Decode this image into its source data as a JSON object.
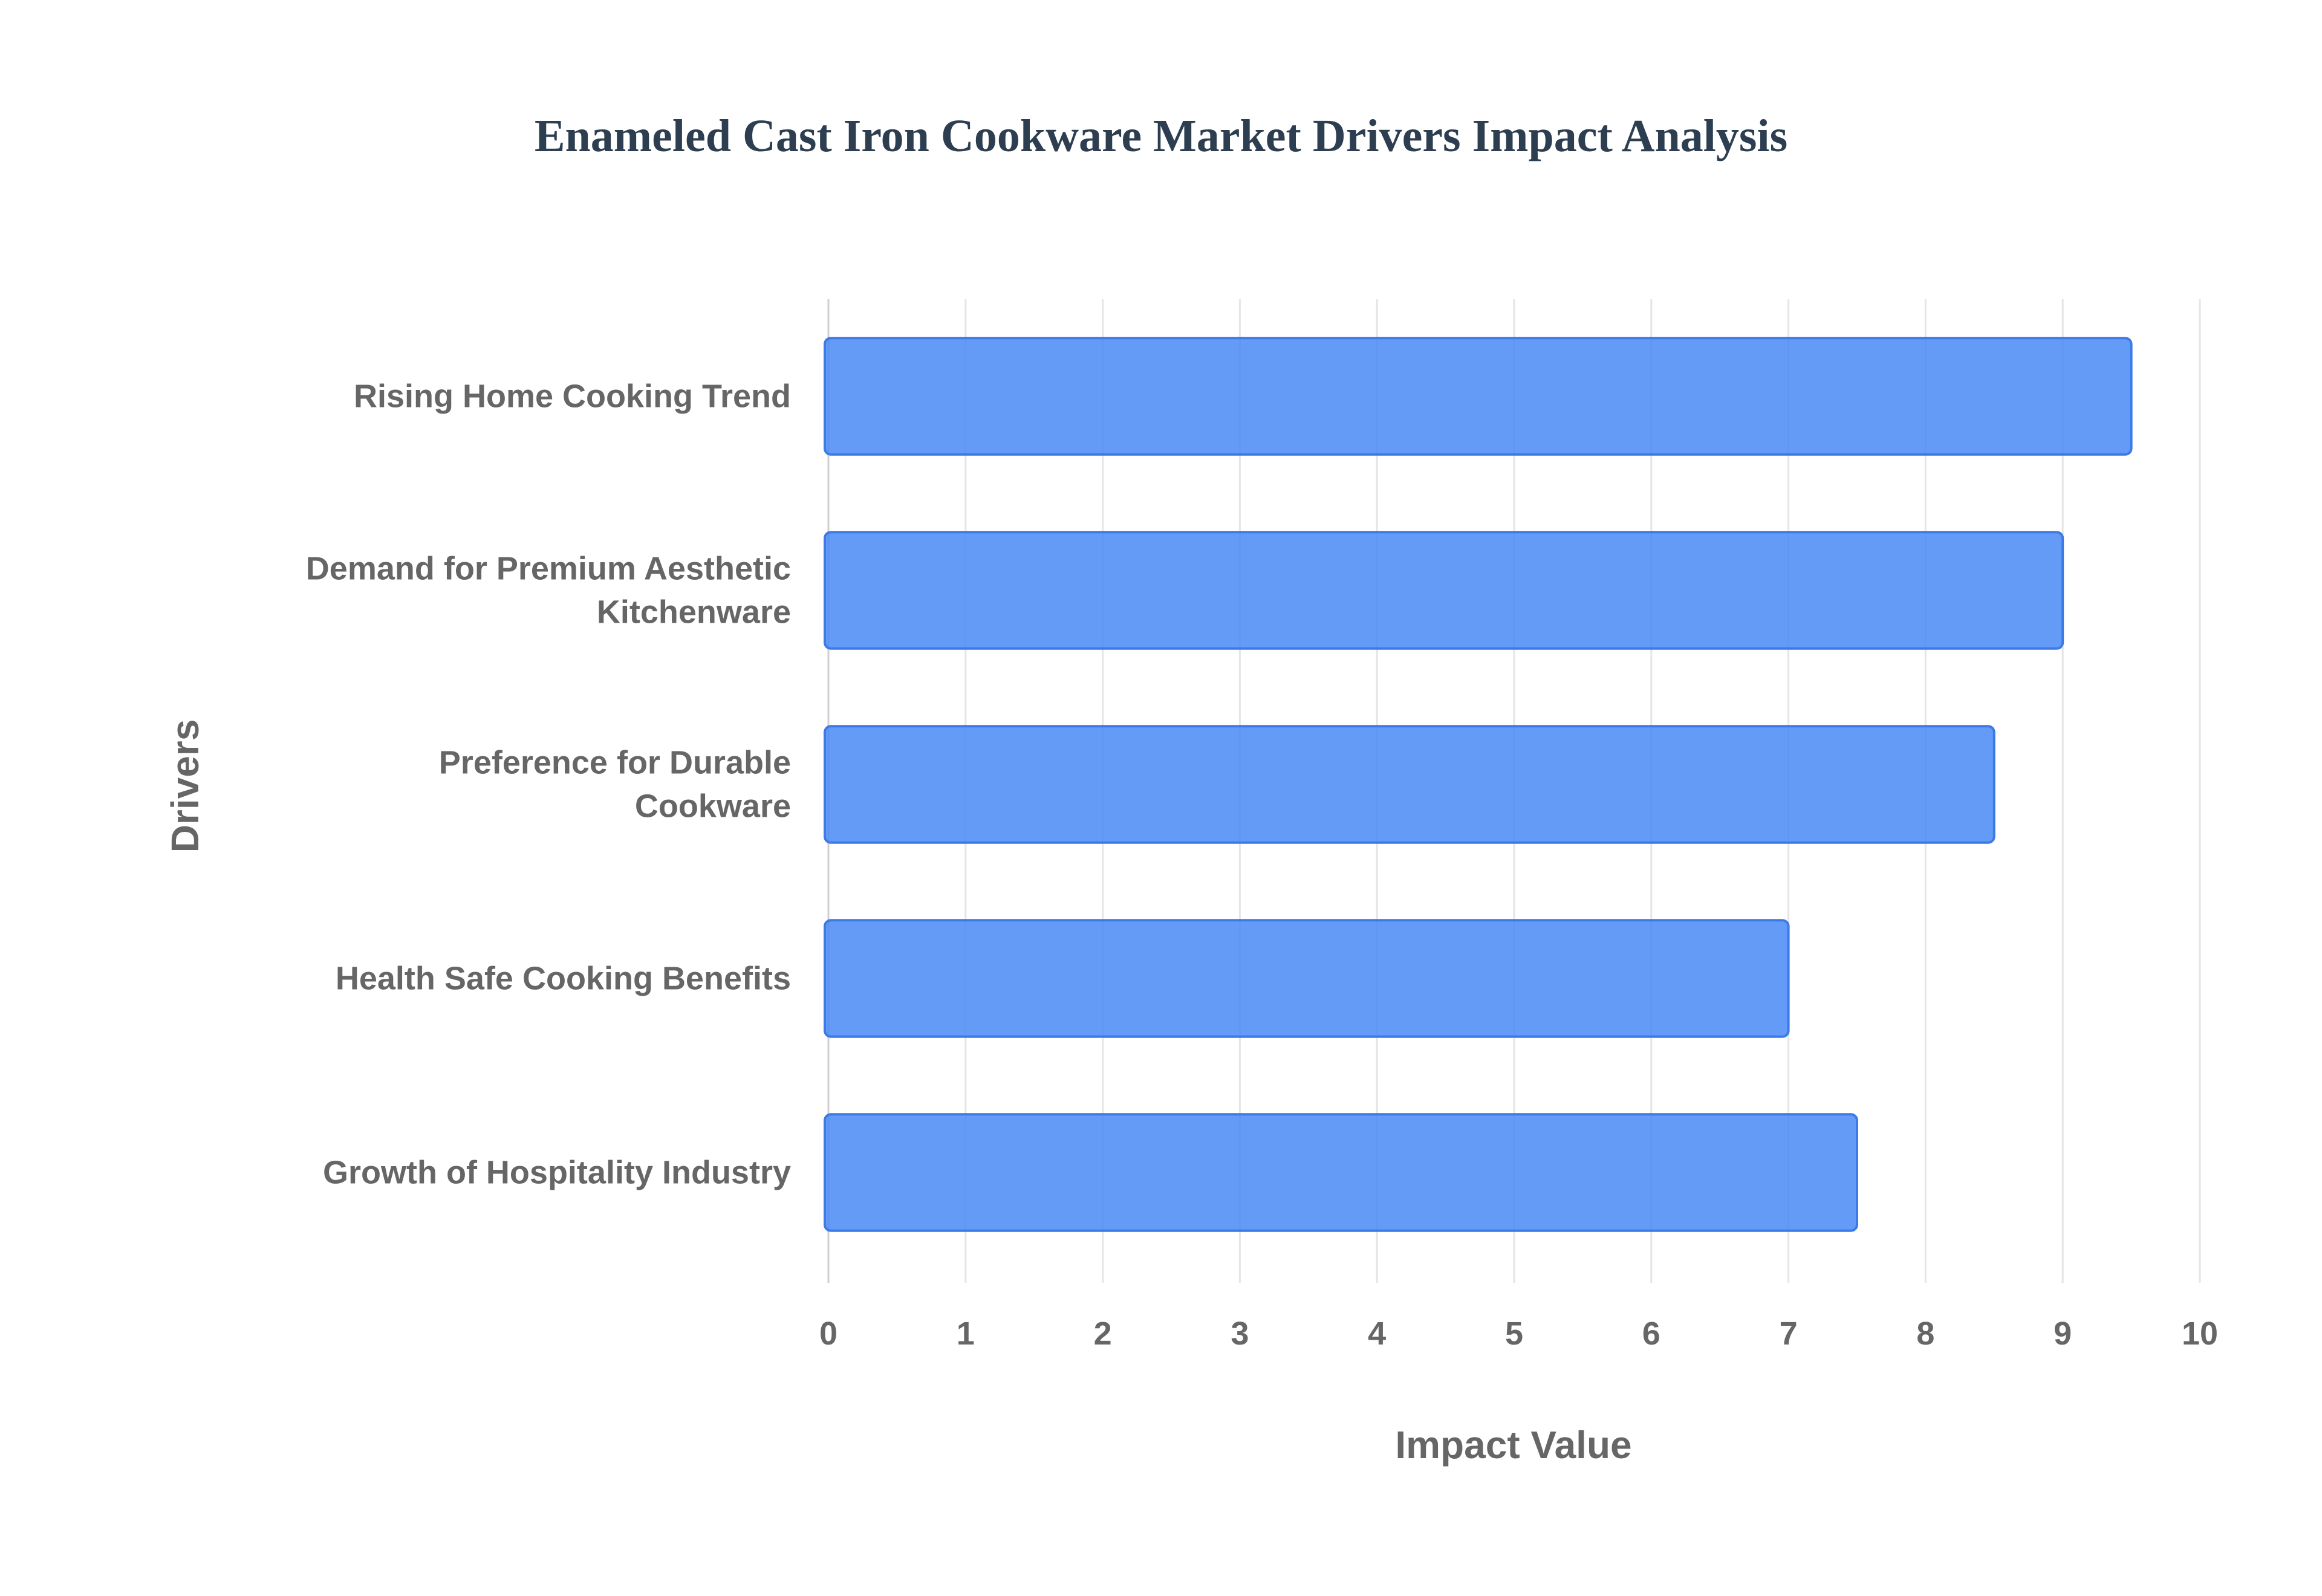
{
  "chart_data": {
    "type": "bar",
    "orientation": "horizontal",
    "title": "Enameled Cast Iron Cookware Market Drivers Impact Analysis",
    "xlabel": "Impact Value",
    "ylabel": "Drivers",
    "xlim": [
      0,
      10
    ],
    "xticks": [
      "0",
      "1",
      "2",
      "3",
      "4",
      "5",
      "6",
      "7",
      "8",
      "9",
      "10"
    ],
    "grid": true,
    "legend": "none",
    "bar_color": "#4285f4",
    "categories": [
      "Rising Home Cooking Trend",
      "Demand for Premium Aesthetic Kitchenware",
      "Preference for Durable Cookware",
      "Health Safe Cooking Benefits",
      "Growth of Hospitality Industry"
    ],
    "category_lines": [
      [
        "Rising Home Cooking Trend"
      ],
      [
        "Demand for Premium Aesthetic",
        "Kitchenware"
      ],
      [
        "Preference for Durable",
        "Cookware"
      ],
      [
        "Health Safe Cooking Benefits"
      ],
      [
        "Growth of Hospitality Industry"
      ]
    ],
    "values": [
      9.5,
      9.0,
      8.5,
      7.0,
      7.5
    ]
  }
}
